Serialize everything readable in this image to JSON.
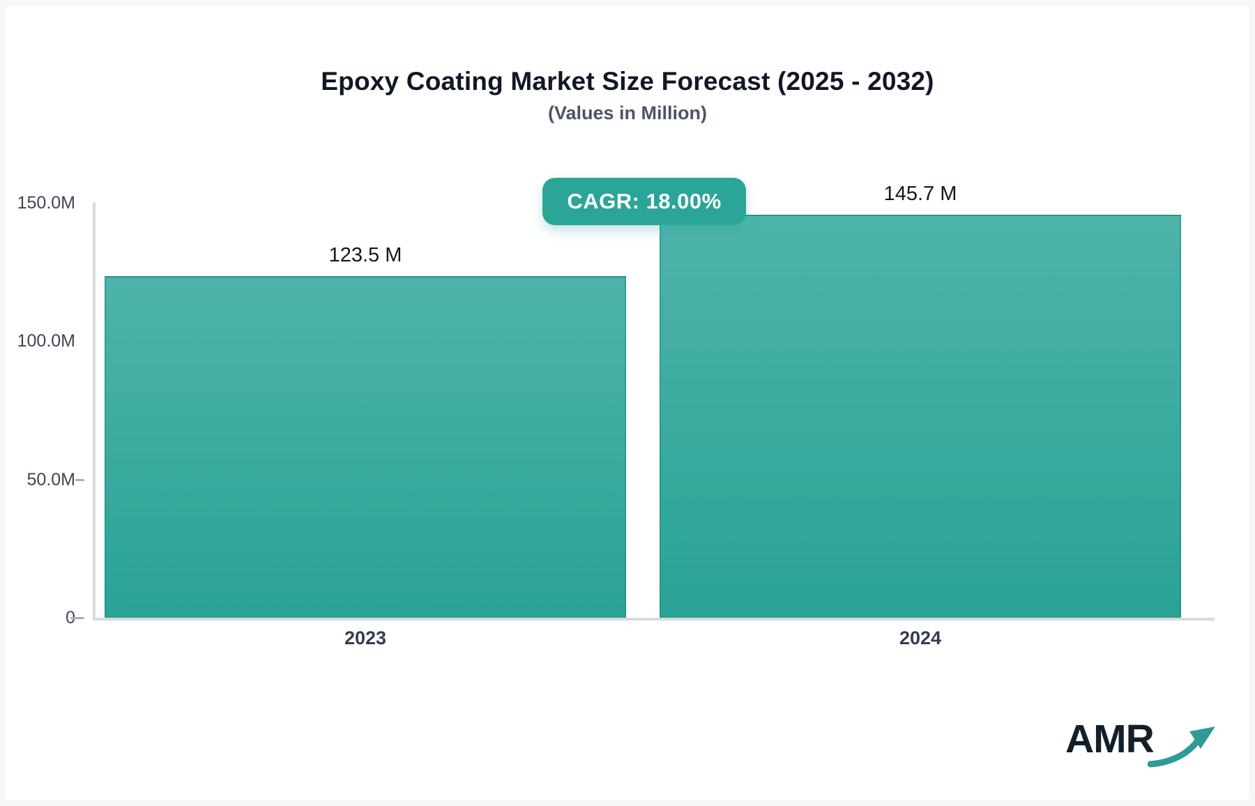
{
  "page": {
    "background": "#f7f7f8",
    "card_background": "#ffffff"
  },
  "chart_data": {
    "type": "bar",
    "title": "Epoxy Coating Market Size Forecast (2025 - 2032)",
    "subtitle": "(Values in Million)",
    "categories": [
      "2023",
      "2024"
    ],
    "values": [
      123.5,
      145.7
    ],
    "value_labels": [
      "123.5 M",
      "145.7 M"
    ],
    "unit": "Million",
    "ylim": [
      0,
      150
    ],
    "yticks": [
      {
        "label": "150.0M",
        "value": 150,
        "tick": false
      },
      {
        "label": "100.0M",
        "value": 100,
        "tick": false
      },
      {
        "label": "50.0M",
        "value": 50,
        "tick": true
      },
      {
        "label": "0",
        "value": 0,
        "tick": true
      }
    ],
    "grid": false,
    "legend": false,
    "bar_color_top": "#4eb4aa",
    "bar_color_bottom": "#2aa296",
    "bar_border_color": "#1f948a"
  },
  "badge": {
    "label": "CAGR: 18.00%",
    "background": "#2ba598",
    "text_color": "#ffffff"
  },
  "logo": {
    "text": "AMR",
    "text_color": "#131f29",
    "arrow_color": "#2e9c94"
  }
}
